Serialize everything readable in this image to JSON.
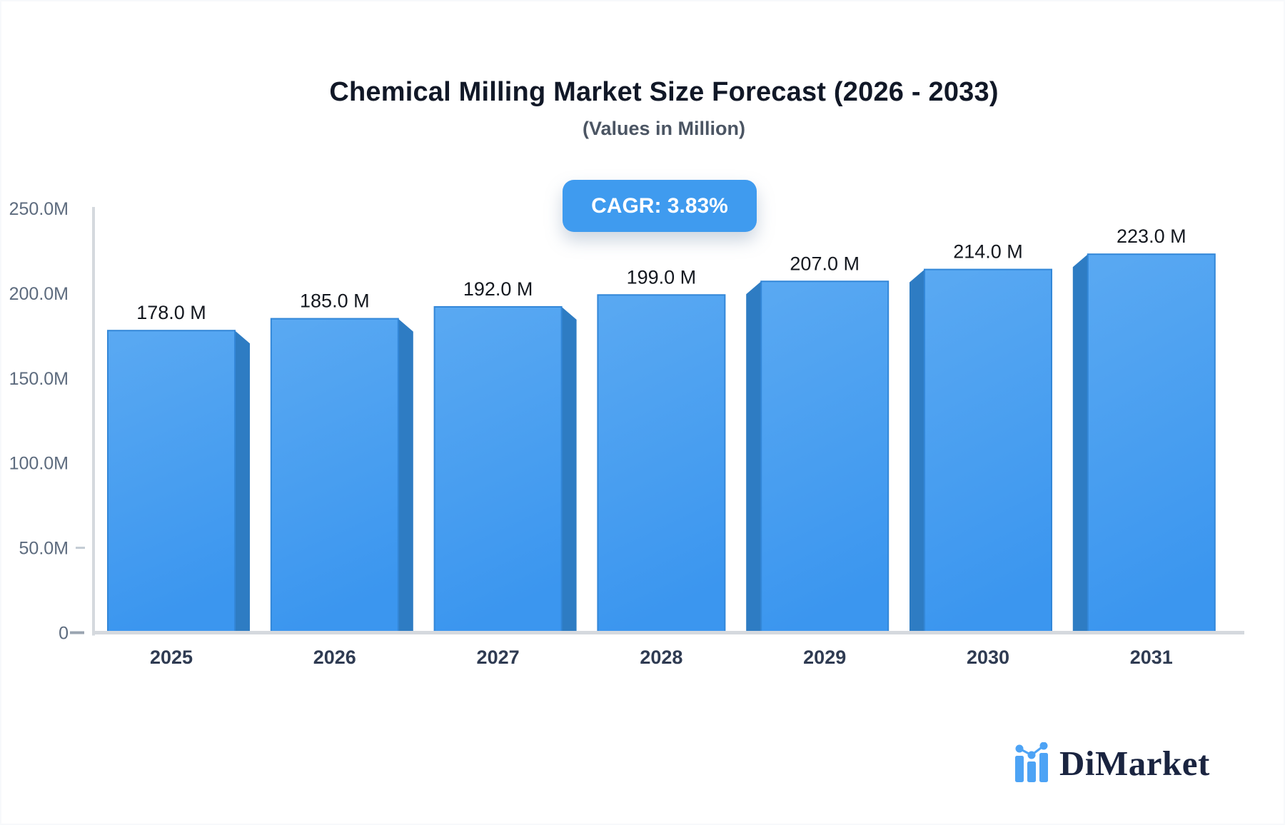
{
  "chart": {
    "title": "Chemical Milling Market Size Forecast (2026 - 2033)",
    "subtitle": "(Values in Million)",
    "cagr_label": "CAGR: 3.83%"
  },
  "chart_data": {
    "type": "bar",
    "title": "Chemical Milling Market Size Forecast (2026 - 2033)",
    "subtitle": "(Values in Million)",
    "annotation": "CAGR: 3.83%",
    "categories": [
      "2025",
      "2026",
      "2027",
      "2028",
      "2029",
      "2030",
      "2031"
    ],
    "values": [
      178,
      185,
      192,
      199,
      207,
      214,
      223
    ],
    "bar_labels": [
      "178.0 M",
      "185.0 M",
      "192.0 M",
      "199.0 M",
      "207.0 M",
      "214.0 M",
      "223.0 M"
    ],
    "xlabel": "",
    "ylabel": "",
    "ylim": [
      0,
      250
    ],
    "y_ticks": [
      {
        "label": "250.0M",
        "value": 250
      },
      {
        "label": "200.0M",
        "value": 200
      },
      {
        "label": "150.0M",
        "value": 150
      },
      {
        "label": "100.0M",
        "value": 100
      },
      {
        "label": "50.0M",
        "value": 50
      },
      {
        "label": "0",
        "value": 0
      }
    ],
    "grid": false,
    "legend": false
  },
  "colors": {
    "bar_face_top": "#5aa9f2",
    "bar_face_bottom": "#3b96ef",
    "bar_side": "#2e7cc3",
    "bar_stroke": "#3387d8",
    "badge_bg": "#3f9bef",
    "axis": "#d5d9de",
    "tick_minor": "#c3cbd4",
    "tick_zero": "#9aa5b1",
    "title_text": "#111827",
    "subtitle_text": "#4b5563",
    "y_label_text": "#5d6b7e",
    "x_label_text": "#2f3b52",
    "value_label_text": "#14181f",
    "logo_blue": "#4da3f5",
    "logo_text": "#1a2440"
  },
  "logo": {
    "text": "DiMarket"
  }
}
